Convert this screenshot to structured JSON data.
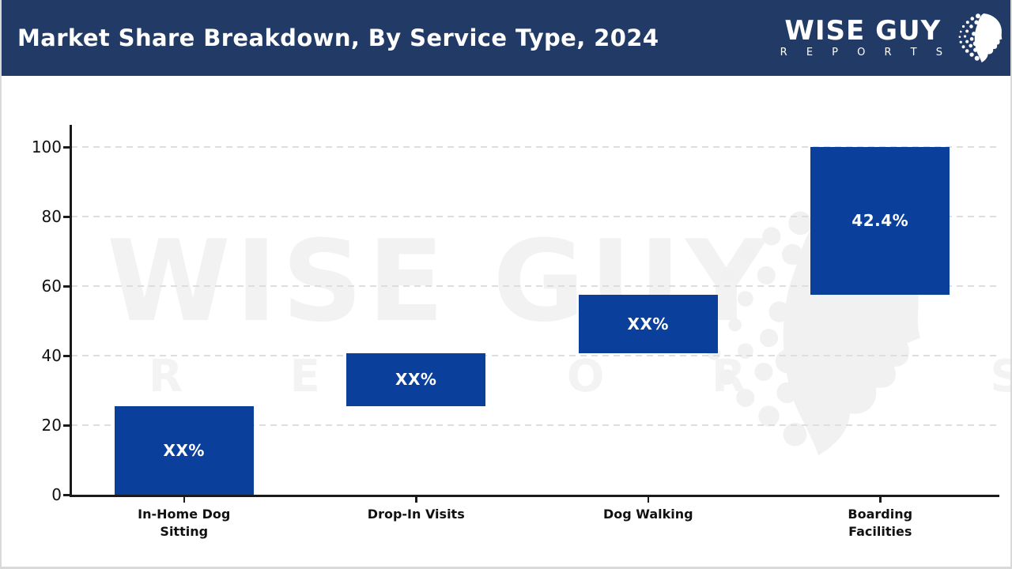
{
  "header": {
    "title": "Market Share Breakdown, By Service Type, 2024",
    "background": "#213a66",
    "logo": {
      "line1": "WISE GUY",
      "line2": "R E P O R T S"
    }
  },
  "watermark": {
    "line1": "WISE GUY",
    "line2": "R E P O R T S"
  },
  "chart_data": {
    "type": "bar",
    "subtype": "floating-waterfall",
    "title": "Market Share Breakdown, By Service Type, 2024",
    "categories": [
      "In-Home Dog\nSitting",
      "Drop-In Visits",
      "Dog Walking",
      "Boarding\nFacilities"
    ],
    "series": [
      {
        "name": "Market share (%)",
        "segments": [
          {
            "category": "In-Home Dog Sitting",
            "start": 0,
            "end": 25.5,
            "value": 25.5,
            "label": "XX%"
          },
          {
            "category": "Drop-In Visits",
            "start": 25.5,
            "end": 40.7,
            "value": 15.2,
            "label": "XX%"
          },
          {
            "category": "Dog Walking",
            "start": 40.7,
            "end": 57.6,
            "value": 16.9,
            "label": "XX%"
          },
          {
            "category": "Boarding Facilities",
            "start": 57.6,
            "end": 100,
            "value": 42.4,
            "label": "42.4%"
          }
        ]
      }
    ],
    "xlabel": "",
    "ylabel": "",
    "ylim": [
      0,
      100
    ],
    "yticks": [
      0,
      20,
      40,
      60,
      80,
      100
    ],
    "grid": "horizontal-dashed",
    "legend": "none",
    "bar_color": "#0b3f9c",
    "bar_label_color": "#ffffff",
    "axis_color": "#1a1a1a"
  }
}
